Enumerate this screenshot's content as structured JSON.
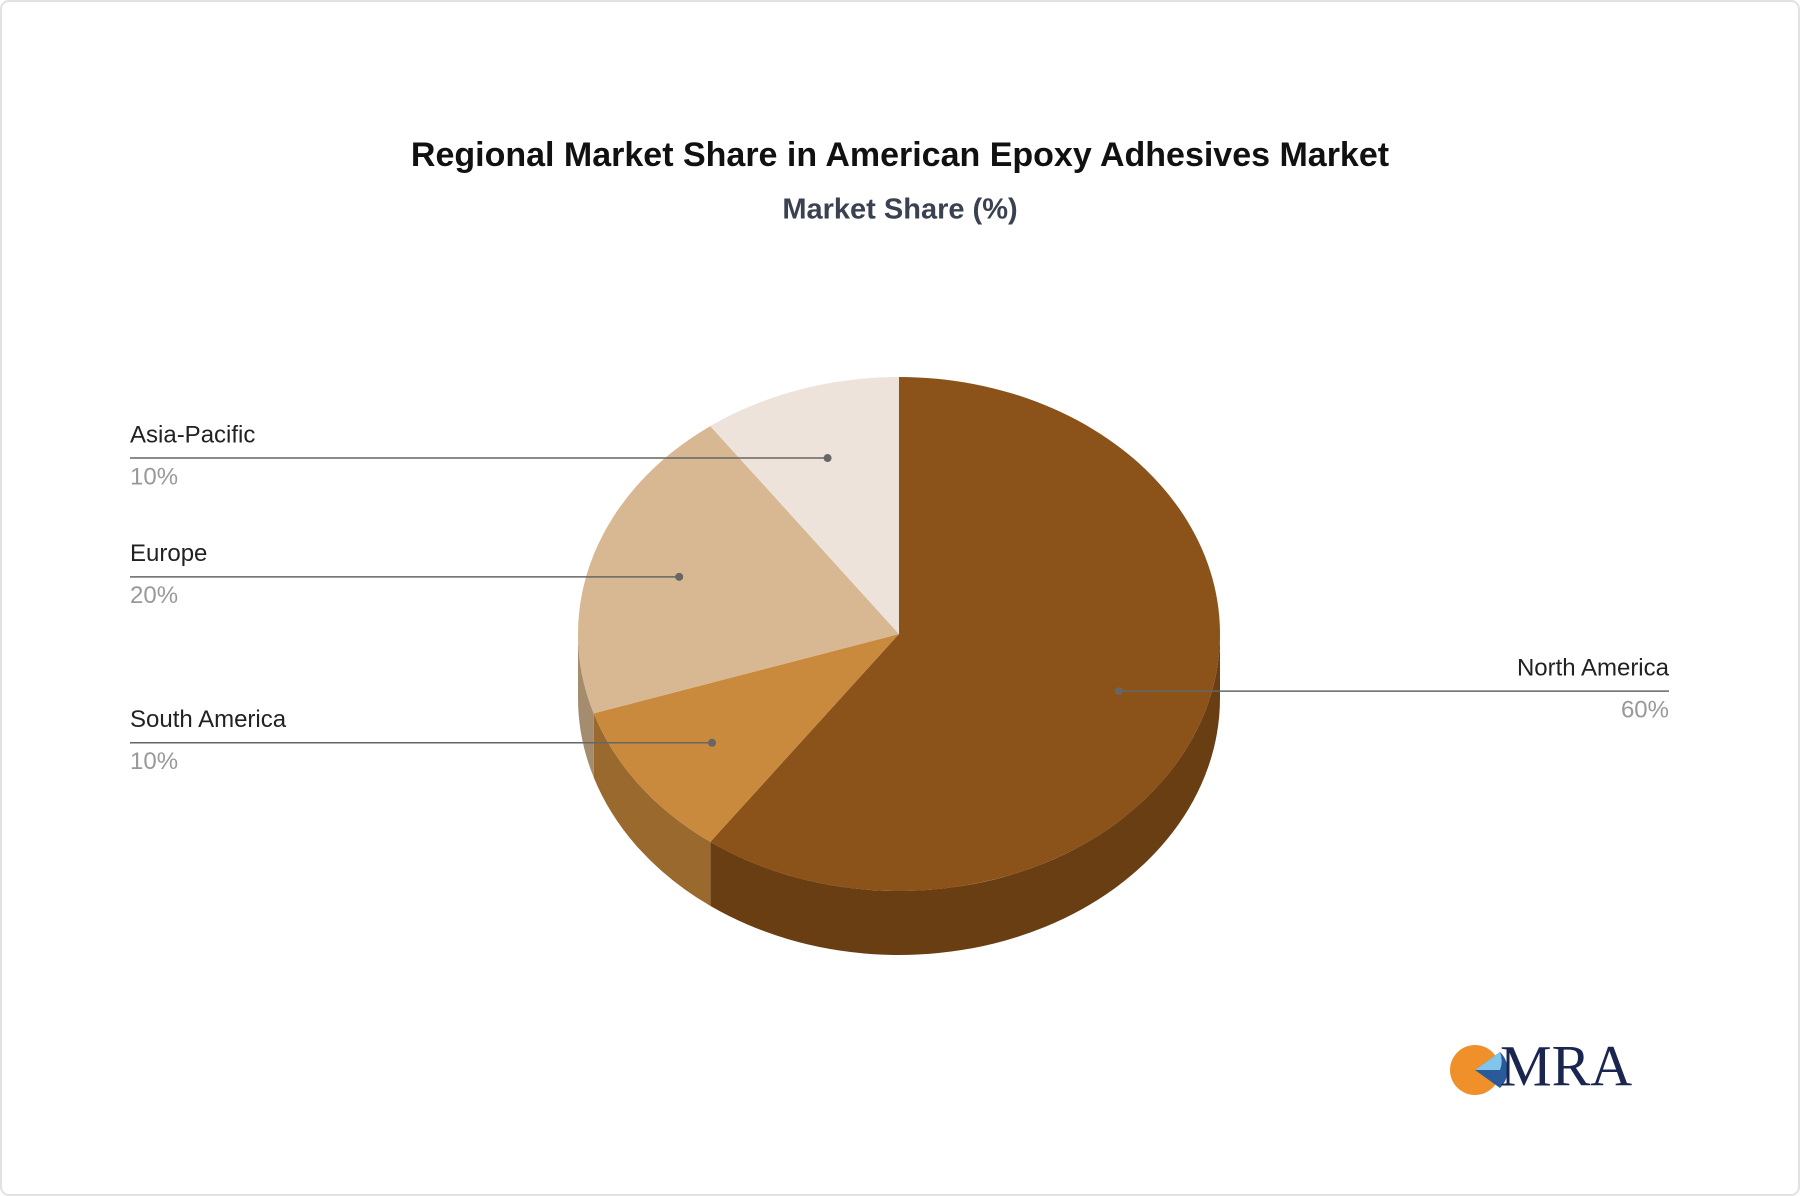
{
  "chart_data": {
    "type": "pie",
    "title": "Regional Market Share in American Epoxy Adhesives Market",
    "subtitle": "Market Share (%)",
    "categories": [
      "North America",
      "South America",
      "Europe",
      "Asia-Pacific"
    ],
    "values": [
      60,
      10,
      20,
      10
    ],
    "value_labels": [
      "60%",
      "10%",
      "20%",
      "10%"
    ],
    "colors": [
      "#8b5219",
      "#c98a3d",
      "#d8b892",
      "#ede3da"
    ]
  },
  "logo": {
    "text": "MRA"
  }
}
